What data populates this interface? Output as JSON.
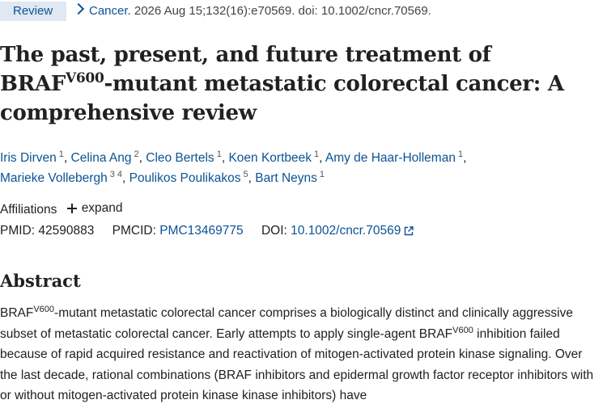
{
  "header": {
    "publication_type": "Review",
    "journal": "Cancer",
    "citation": ". 2026 Aug 15;132(16):e70569. doi: 10.1002/cncr.70569."
  },
  "article": {
    "title_part1": "The past, present, and future treatment of BRAF",
    "title_sup": "V600",
    "title_part2": "-mutant metastatic colorectal cancer: A comprehensive review"
  },
  "authors": [
    {
      "name": "Iris Dirven",
      "aff": "1",
      "sep": ","
    },
    {
      "name": "Celina Ang",
      "aff": "2",
      "sep": ","
    },
    {
      "name": "Cleo Bertels",
      "aff": "1",
      "sep": ","
    },
    {
      "name": "Koen Kortbeek",
      "aff": "1",
      "sep": ","
    },
    {
      "name": "Amy de Haar-Holleman",
      "aff": "1",
      "sep": ","
    },
    {
      "name": "Marieke Vollebergh",
      "aff": "3 4",
      "sep": ","
    },
    {
      "name": "Poulikos Poulikakos",
      "aff": "5",
      "sep": ","
    },
    {
      "name": "Bart Neyns",
      "aff": "1",
      "sep": ""
    }
  ],
  "affiliations": {
    "label": "Affiliations",
    "expand_label": "expand"
  },
  "identifiers": {
    "pmid_label": "PMID:",
    "pmid": "42590883",
    "pmcid_label": "PMCID:",
    "pmcid": "PMC13469775",
    "doi_label": "DOI:",
    "doi": "10.1002/cncr.70569"
  },
  "abstract": {
    "heading": "Abstract",
    "seg1": "BRAF",
    "sup1": "V600",
    "seg2": "-mutant metastatic colorectal cancer comprises a biologically distinct and clinically aggressive subset of metastatic colorectal cancer. Early attempts to apply single-agent BRAF",
    "sup2": "V600",
    "seg3": " inhibition failed because of rapid acquired resistance and reactivation of mitogen-activated protein kinase signaling. Over the last decade, rational combinations (BRAF inhibitors and epidermal growth factor receptor inhibitors with or without mitogen-activated protein kinase kinase inhibitors) have"
  },
  "colors": {
    "link": "#0b5394",
    "badge_background": "#dfe8f3",
    "text": "#212121"
  },
  "icons": [
    "chevron-right-icon",
    "plus-icon",
    "external-link-icon"
  ]
}
